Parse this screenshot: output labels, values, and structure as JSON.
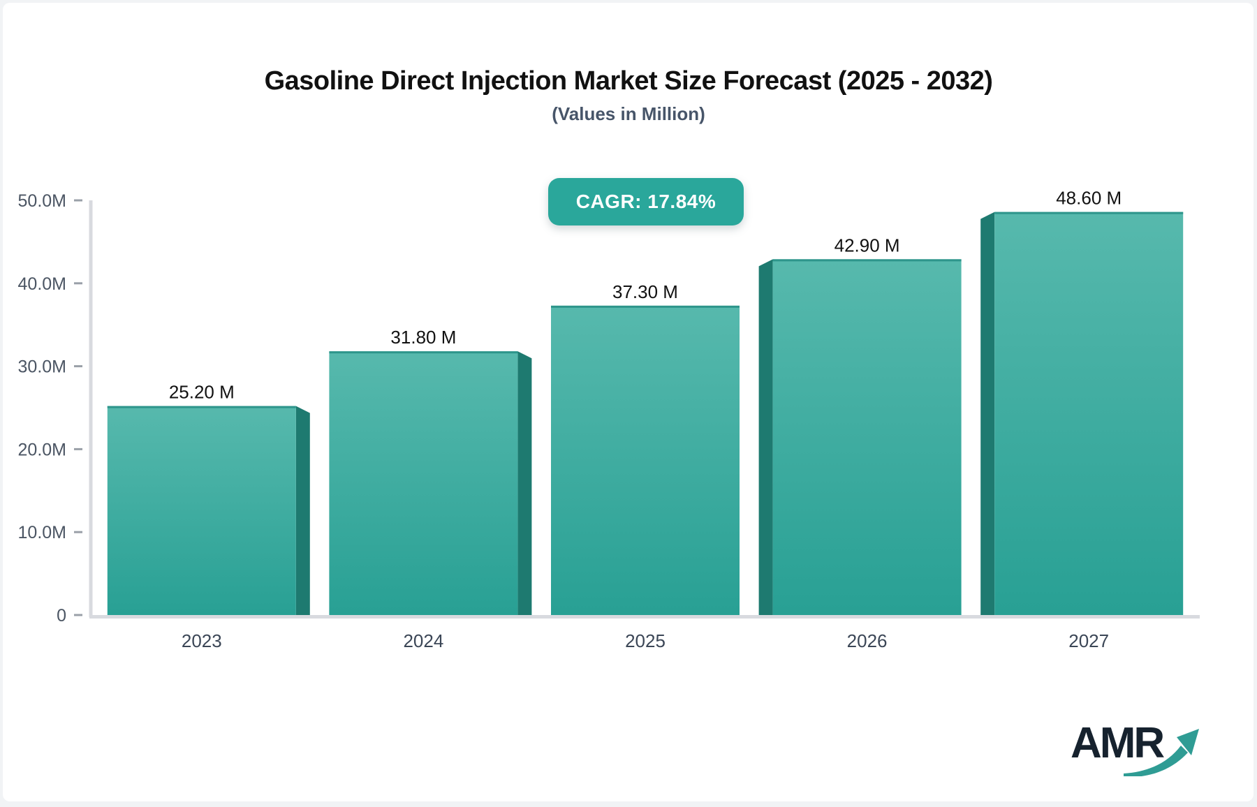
{
  "page": {
    "title": "Gasoline Direct Injection Market Size Forecast (2025 - 2032)",
    "subtitle": "(Values in Million)"
  },
  "badge": {
    "label": "CAGR: 17.84%"
  },
  "chart_data": {
    "type": "bar",
    "title": "Gasoline Direct Injection Market Size Forecast (2025 - 2032)",
    "subtitle": "(Values in Million)",
    "categories": [
      "2023",
      "2024",
      "2025",
      "2026",
      "2027"
    ],
    "values": [
      25.2,
      31.8,
      37.3,
      42.9,
      48.6
    ],
    "value_labels": [
      "25.20 M",
      "31.80 M",
      "37.30 M",
      "42.90 M",
      "48.60 M"
    ],
    "xlabel": "",
    "ylabel": "",
    "ylim": [
      0,
      50
    ],
    "y_ticks": [
      {
        "value": 0,
        "label": "0"
      },
      {
        "value": 10,
        "label": "10.0M"
      },
      {
        "value": 20,
        "label": "20.0M"
      },
      {
        "value": 30,
        "label": "30.0M"
      },
      {
        "value": 40,
        "label": "40.0M"
      },
      {
        "value": 50,
        "label": "50.0M"
      }
    ],
    "grid": false,
    "legend": false,
    "cagr_annotation": "CAGR: 17.84%",
    "bar_color_top": "#57b9ad",
    "bar_color_bottom": "#28a094",
    "bar_top_edge_color": "#2e958b",
    "bar_side_color": "#1e7a70",
    "axis_line_color": "#d8dadf",
    "tick_mark_color": "#9aa0a8",
    "tick_label_color": "#4b5563",
    "x_label_color": "#3b4656",
    "value_label_color": "#111111"
  },
  "logo": {
    "text": "AMR"
  },
  "colors": {
    "badge_bg": "#2aa79b",
    "badge_text": "#ffffff",
    "title_text": "#111111",
    "subtitle_text": "#475569",
    "logo_navy": "#16222e",
    "logo_swoosh": "#2f9c94",
    "card_bg": "#ffffff"
  }
}
